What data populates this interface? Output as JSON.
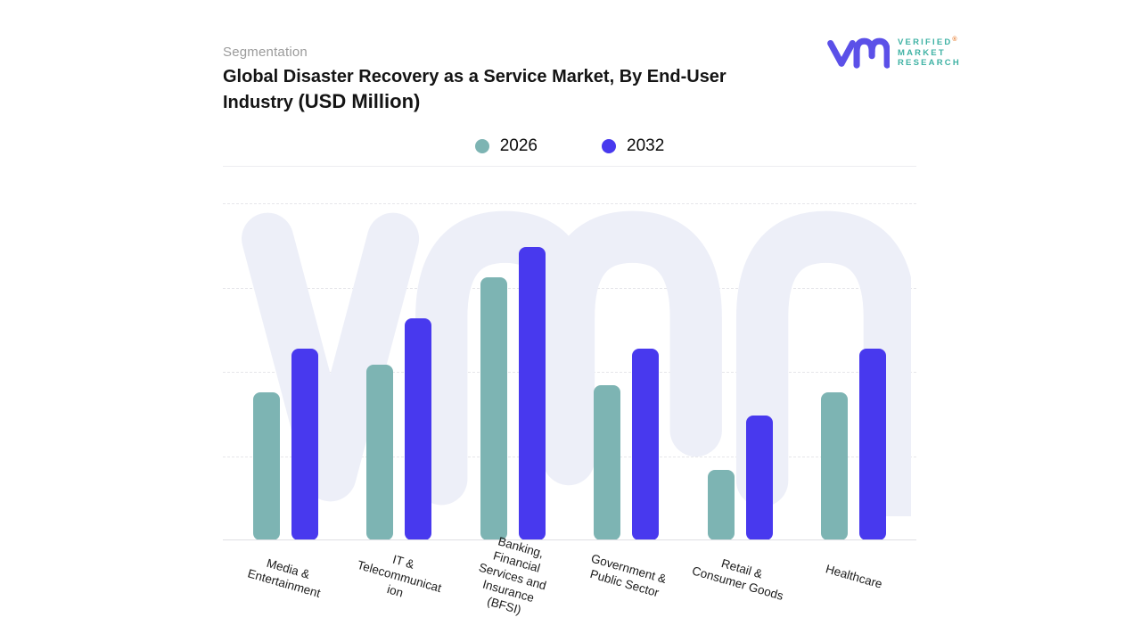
{
  "page": {
    "eyebrow": "Segmentation"
  },
  "brand": {
    "name": "Verified Market Research",
    "lines": [
      "VERIFIED",
      "MARKET",
      "RESEARCH"
    ],
    "registered": "®",
    "glyph_color": "#5B50E8",
    "text_color": "#3FB2A4"
  },
  "chart_data": {
    "type": "bar",
    "title": "Global Disaster Recovery as a Service Market, By End-User Industry",
    "title_unit": "(USD Million)",
    "xlabel": "",
    "ylabel": "",
    "categories": [
      "Media & Entertainment",
      "IT & Telecommunication",
      "Banking, Financial Services and Insurance (BFSI)",
      "Government & Public Sector",
      "Retail & Consumer Goods",
      "Healthcare"
    ],
    "display_labels": [
      "Media &\nEntertainment",
      "IT &\nTelecommunicat\nion",
      "Banking,\nFinancial\nServices and\nInsurance\n(BFSI)",
      "Government &\nPublic Sector",
      "Retail &\nConsumer Goods",
      "Healthcare"
    ],
    "series": [
      {
        "name": "2026",
        "color": "#7DB4B3",
        "values": [
          44,
          52,
          78,
          46,
          21,
          44
        ]
      },
      {
        "name": "2032",
        "color": "#4839EE",
        "values": [
          57,
          66,
          87,
          57,
          37,
          57
        ]
      }
    ],
    "ylim": [
      0,
      100
    ],
    "y_axis_labels_visible": false,
    "grid": "horizontal dashed, 4 lines above baseline",
    "legend_position": "top-center",
    "watermark_color": "#EDEFF8"
  }
}
